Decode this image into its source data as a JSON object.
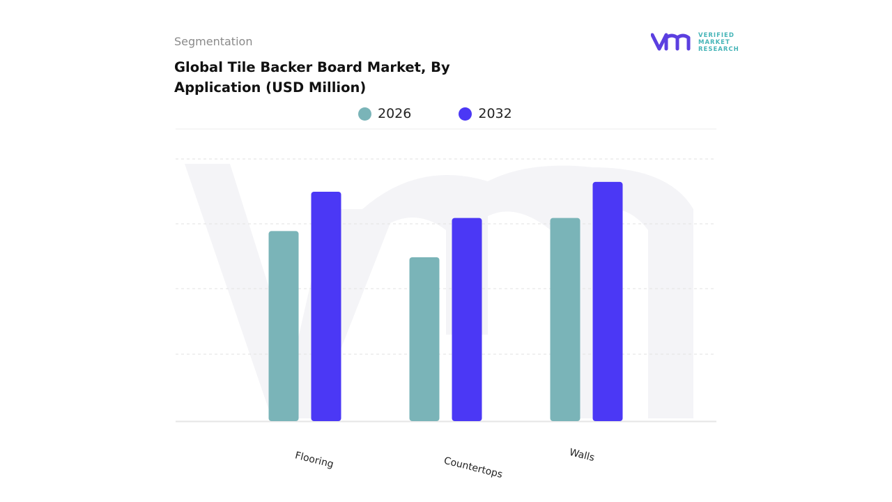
{
  "header": {
    "segment_label": "Segmentation",
    "title": "Global Tile Backer Board Market, By Application (USD Million)"
  },
  "logo": {
    "line1": "VERIFIED",
    "line2": "MARKET",
    "line3": "RESEARCH",
    "mark_color": "#5b3fe0",
    "text_color": "#46b5b8"
  },
  "colors": {
    "series_2026": "#7ab4b8",
    "series_2032": "#4b38f5",
    "watermark": "#f3f3f6",
    "grid": "#e2e2e2"
  },
  "chart_data": {
    "type": "bar",
    "categories": [
      "Flooring",
      "Countertops",
      "Walls"
    ],
    "series": [
      {
        "name": "2026",
        "values": [
          58,
          50,
          62
        ]
      },
      {
        "name": "2032",
        "values": [
          70,
          62,
          73
        ]
      }
    ],
    "ylim": [
      0,
      80
    ],
    "grid": true,
    "legend_position": "top-center"
  }
}
